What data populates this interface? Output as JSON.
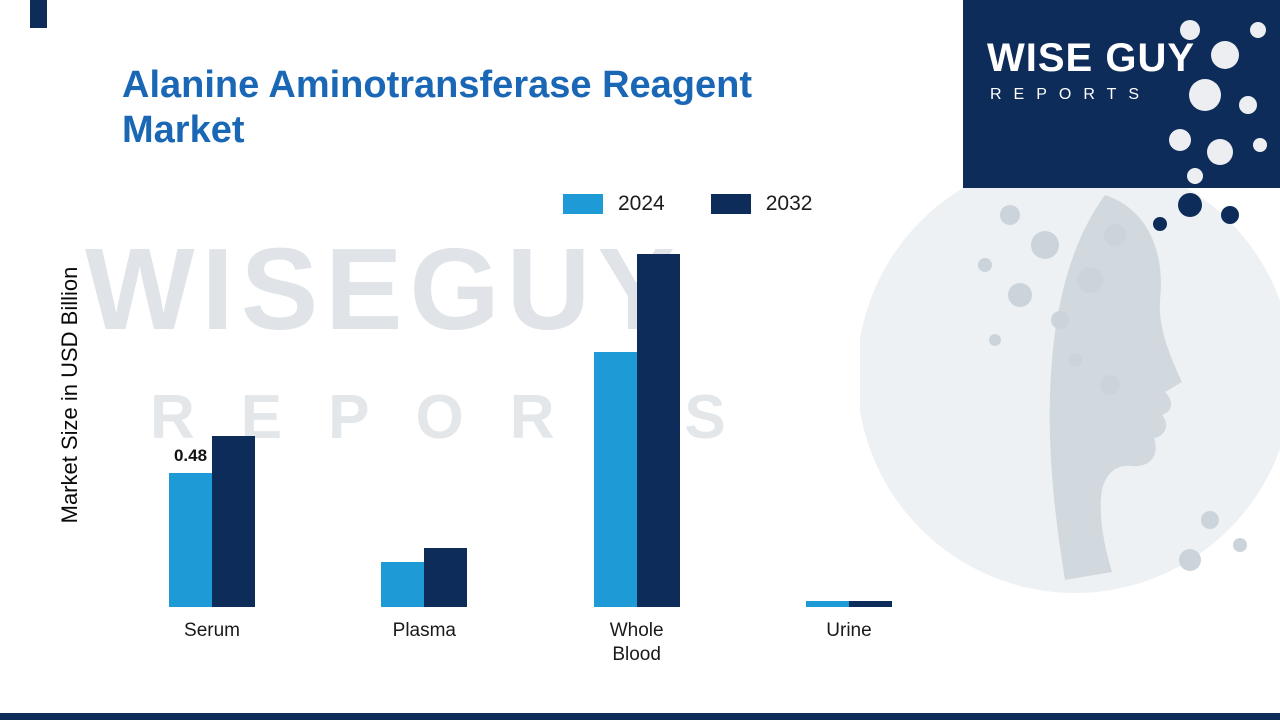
{
  "page": {
    "title": "Alanine Aminotransferase Reagent Market"
  },
  "brand": {
    "name": "WISE GUY",
    "subtitle": "REPORTS"
  },
  "watermark": {
    "line1": "WISEGUY",
    "line2": "REPORTS"
  },
  "colors": {
    "accent_blue": "#1e9bd7",
    "navy": "#0e2c5a",
    "title_blue": "#1a67b5",
    "watermark_gray": "#e0e3e7"
  },
  "chart_data": {
    "type": "bar",
    "title": "Alanine Aminotransferase Reagent Market",
    "xlabel": "",
    "ylabel": "Market Size in USD Billion",
    "categories": [
      "Serum",
      "Plasma",
      "Whole Blood",
      "Urine"
    ],
    "series": [
      {
        "name": "2024",
        "color": "#1e9bd7",
        "values": [
          0.48,
          0.16,
          0.91,
          0.02
        ]
      },
      {
        "name": "2032",
        "color": "#0e2c5a",
        "values": [
          0.61,
          0.21,
          1.26,
          0.02
        ]
      }
    ],
    "data_labels": [
      {
        "series": 0,
        "category": 0,
        "text": "0.48"
      }
    ],
    "ylim": [
      0,
      1.4
    ],
    "grid": false,
    "legend_position": "top-center"
  }
}
